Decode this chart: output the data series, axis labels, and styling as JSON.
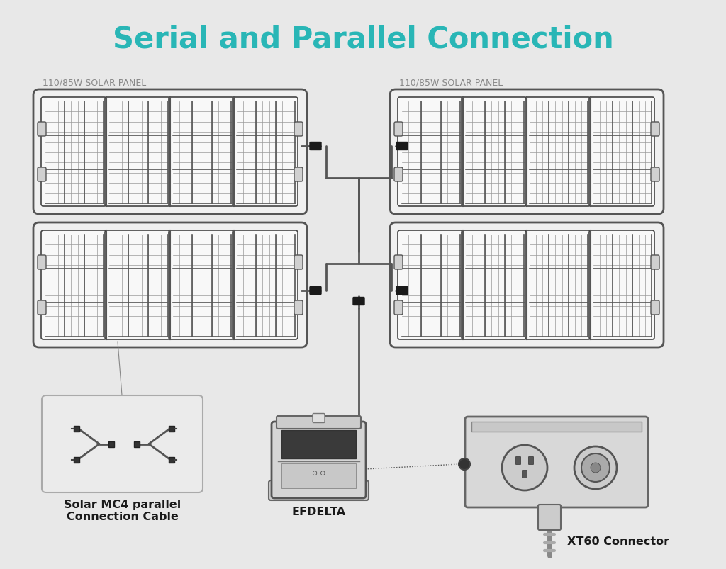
{
  "title": "Serial and Parallel Connection",
  "title_color": "#29b6b6",
  "title_fontsize": 30,
  "bg_color": "#e8e8e8",
  "panel_label": "110/85W SOLAR PANEL",
  "panel_label_color": "#888888",
  "panel_label_fontsize": 9,
  "label_mc4": "Solar MC4 parallel\nConnection Cable",
  "label_efdelta": "EFDELTA",
  "label_xt60": "XT60 Connector",
  "label_fontsize": 11.5,
  "panel_frame_color": "#555555",
  "panel_cell_bg": "#f5f5f5",
  "panel_outer_bg": "#e0e0e0",
  "connector_color": "#222222",
  "wire_color": "#555555",
  "wire_lw": 2.0,
  "mc4_connector_color": "#1a1a1a"
}
